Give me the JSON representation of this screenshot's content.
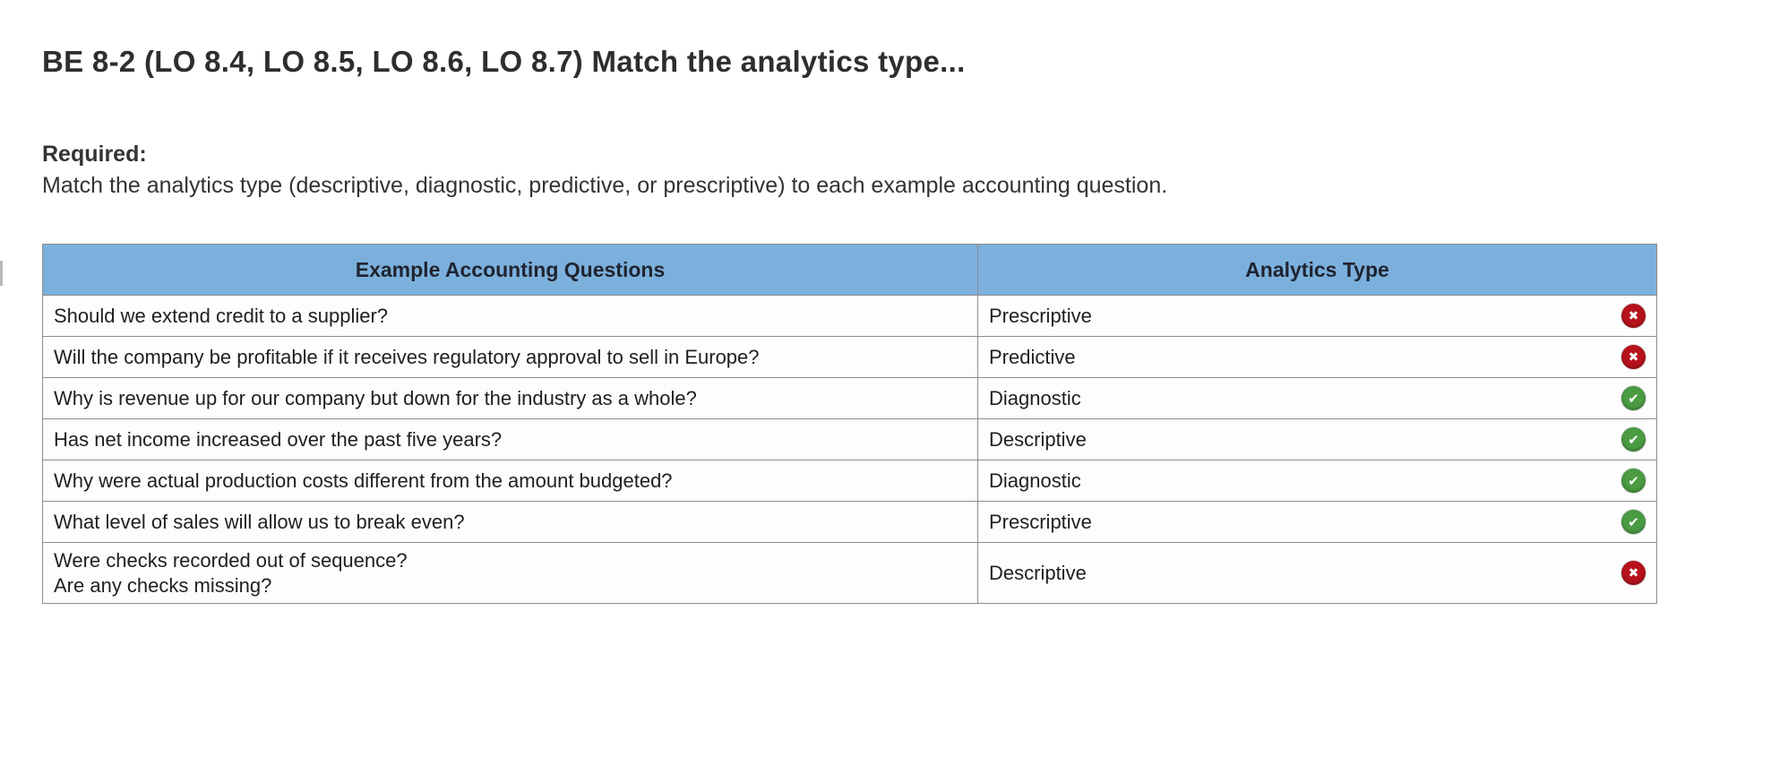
{
  "page": {
    "title": "BE 8-2 (LO 8.4, LO 8.5, LO 8.6, LO 8.7) Match the analytics type...",
    "required_label": "Required:",
    "instruction": "Match the analytics type (descriptive, diagnostic, predictive, or prescriptive) to each example accounting question."
  },
  "table": {
    "headers": [
      "Example Accounting Questions",
      "Analytics Type"
    ],
    "rows": [
      {
        "question": "Should we extend credit to a supplier?",
        "answer": "Prescriptive",
        "result": "incorrect"
      },
      {
        "question": "Will the company be profitable if it receives regulatory approval to sell in Europe?",
        "answer": "Predictive",
        "result": "incorrect"
      },
      {
        "question": "Why is revenue up for our company but down for the industry as a whole?",
        "answer": "Diagnostic",
        "result": "correct"
      },
      {
        "question": "Has net income increased over the past five years?",
        "answer": "Descriptive",
        "result": "correct"
      },
      {
        "question": "Why were actual production costs different from the amount budgeted?",
        "answer": "Diagnostic",
        "result": "correct"
      },
      {
        "question": "What level of sales will allow us to break even?",
        "answer": "Prescriptive",
        "result": "correct"
      },
      {
        "question": "Were checks recorded out of sequence?\nAre any checks missing?",
        "answer": "Descriptive",
        "result": "incorrect"
      }
    ]
  },
  "colors": {
    "header_bg": "#7cb0dc",
    "correct": "#4a9b42",
    "incorrect": "#b5121b"
  }
}
